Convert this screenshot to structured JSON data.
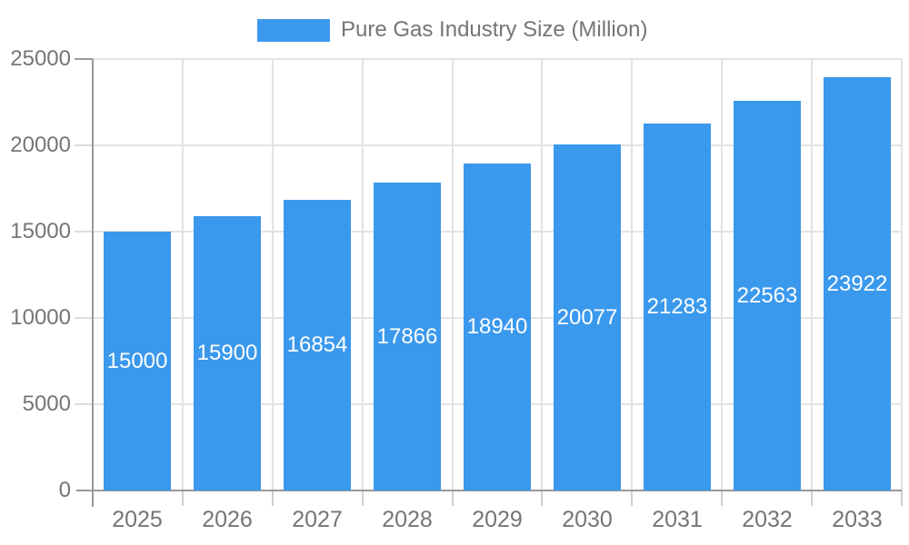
{
  "legend": {
    "label": "Pure Gas Industry Size (Million)"
  },
  "chart_data": {
    "type": "bar",
    "title": "Pure Gas Industry Size (Million)",
    "categories": [
      "2025",
      "2026",
      "2027",
      "2028",
      "2029",
      "2030",
      "2031",
      "2032",
      "2033"
    ],
    "series": [
      {
        "name": "Pure Gas Industry Size (Million)",
        "values": [
          15000,
          15900,
          16854,
          17866,
          18940,
          20077,
          21283,
          22563,
          23922
        ]
      }
    ],
    "value_labels": [
      "15000",
      "15900",
      "16854",
      "17866",
      "18940",
      "20077",
      "21283",
      "22563",
      "23922"
    ],
    "xlabel": "",
    "ylabel": "",
    "ylim": [
      0,
      25000
    ],
    "yticks": [
      0,
      5000,
      10000,
      15000,
      20000,
      25000
    ],
    "ytick_labels": [
      "0",
      "5000",
      "10000",
      "15000",
      "20000",
      "25000"
    ],
    "grid": true,
    "legend_position": "top-center",
    "value_label_position": "inside-center",
    "colors": {
      "bar": "#3B99ED",
      "axis": "#999999",
      "gridline": "#E3E3E3",
      "tick_light": "#DDDDDD",
      "label_text": "#757575",
      "value_text": "#FFFFFF",
      "background": "#FFFFFF"
    }
  }
}
